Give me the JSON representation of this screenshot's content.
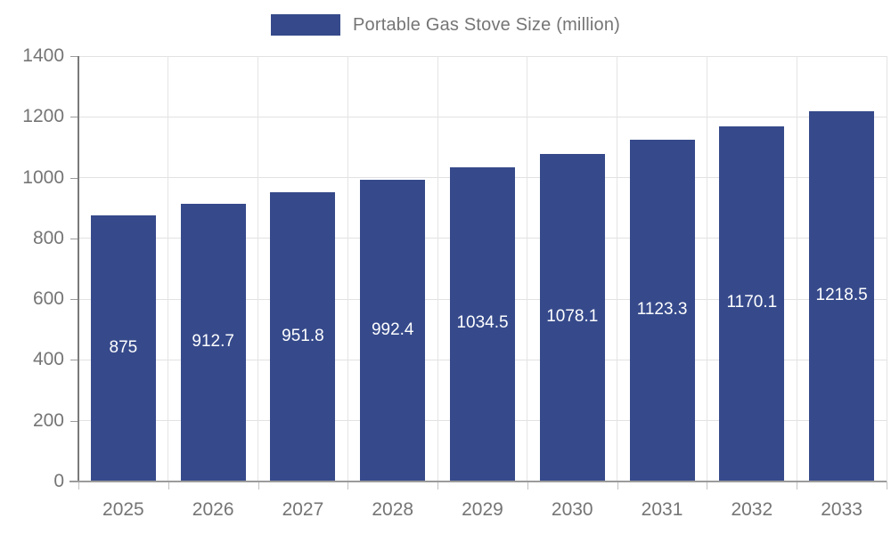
{
  "legend": {
    "label": "Portable Gas Stove Size (million)",
    "swatch_color": "#364A8B"
  },
  "chart_data": {
    "type": "bar",
    "title": "Portable Gas Stove Size (million)",
    "categories": [
      "2025",
      "2026",
      "2027",
      "2028",
      "2029",
      "2030",
      "2031",
      "2032",
      "2033"
    ],
    "series": [
      {
        "name": "Portable Gas Stove Size (million)",
        "values": [
          875,
          912.7,
          951.8,
          992.4,
          1034.5,
          1078.1,
          1123.3,
          1170.1,
          1218.5
        ]
      }
    ],
    "value_labels": [
      "875",
      "912.7",
      "951.8",
      "992.4",
      "1034.5",
      "1078.1",
      "1123.3",
      "1170.1",
      "1218.5"
    ],
    "xlabel": "",
    "ylabel": "",
    "ylim": [
      0,
      1400
    ],
    "ytick_step": 200,
    "ytick_labels": [
      "0",
      "200",
      "400",
      "600",
      "800",
      "1000",
      "1200",
      "1400"
    ],
    "grid": true,
    "legend_position": "top",
    "colors": {
      "bar": "#364A8B",
      "value_label": "#ffffff",
      "axis_text": "#757575",
      "gridline": "#e2e2e2",
      "axis_line": "#9b9b9b"
    }
  }
}
